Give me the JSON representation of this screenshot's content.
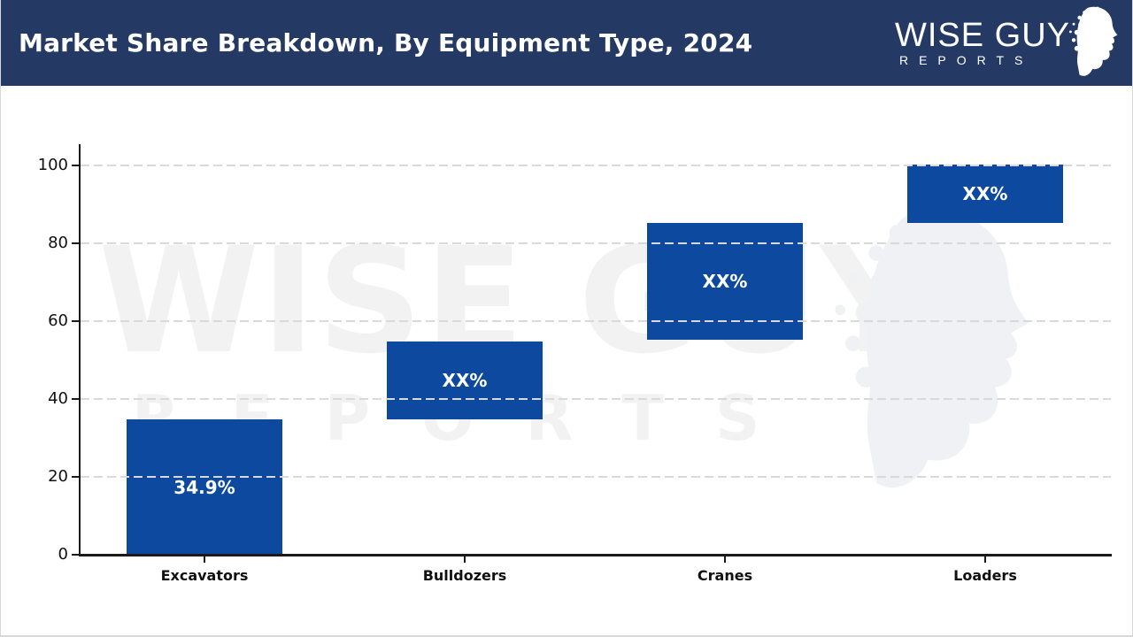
{
  "header": {
    "title": "Market Share Breakdown, By Equipment Type, 2024",
    "background_color": "#243A64",
    "logo": {
      "line1": "WISE GUY",
      "line2": "REPORTS"
    }
  },
  "watermark": {
    "line1": "WISE GUY",
    "line2": "REPORTS"
  },
  "frame": {
    "border_color": "#D9D9D9"
  },
  "chart_data": {
    "type": "bar",
    "subtype": "waterfall",
    "title": "Market Share Breakdown, By Equipment Type, 2024",
    "categories": [
      "Excavators",
      "Bulldozers",
      "Cranes",
      "Loaders"
    ],
    "series": [
      {
        "name": "Market Share",
        "segments": [
          {
            "category": "Excavators",
            "start": 0,
            "end": 34.9,
            "label": "34.9%"
          },
          {
            "category": "Bulldozers",
            "start": 34.9,
            "end": 54.9,
            "label": "XX%"
          },
          {
            "category": "Cranes",
            "start": 55.2,
            "end": 85.2,
            "label": "XX%"
          },
          {
            "category": "Loaders",
            "start": 85.3,
            "end": 100.4,
            "label": "XX%"
          }
        ]
      }
    ],
    "xlabel": "",
    "ylabel": "",
    "yticks": [
      0,
      20,
      40,
      60,
      80,
      100
    ],
    "ylim": [
      0,
      105.5
    ],
    "grid": "horizontal-dashed-drawn-over-bars",
    "legend": "none",
    "bar_color": "#0D4A9F",
    "bar_label_color": "#FFFFFF",
    "gridline_color": "#D9D9D9",
    "axis_color": "#1A1A1A"
  }
}
